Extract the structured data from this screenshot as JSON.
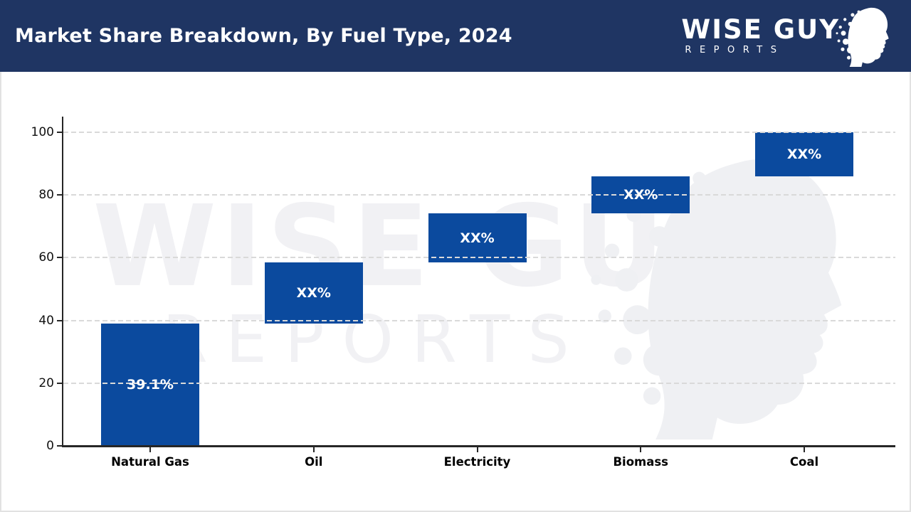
{
  "header": {
    "title": "Market Share Breakdown, By Fuel Type, 2024"
  },
  "brand": {
    "wordmark": "WISE GUY",
    "subtitle": "REPORTS"
  },
  "watermark": {
    "line1": "WISE GUY",
    "line2": "REPORTS"
  },
  "chart_data": {
    "type": "bar",
    "subtype": "waterfall",
    "title": "Market Share Breakdown, By Fuel Type, 2024",
    "categories": [
      "Natural Gas",
      "Oil",
      "Electricity",
      "Biomass",
      "Coal"
    ],
    "series": [
      {
        "name": "Market share (%)",
        "segments": [
          {
            "category": "Natural Gas",
            "start": 0,
            "end": 39.1,
            "label": "39.1%"
          },
          {
            "category": "Oil",
            "start": 39.1,
            "end": 58.5,
            "label": "XX%"
          },
          {
            "category": "Electricity",
            "start": 58.5,
            "end": 74.1,
            "label": "XX%"
          },
          {
            "category": "Biomass",
            "start": 74.1,
            "end": 86.0,
            "label": "XX%"
          },
          {
            "category": "Coal",
            "start": 86.0,
            "end": 100.0,
            "label": "XX%"
          }
        ]
      }
    ],
    "xlabel": "",
    "ylabel": "",
    "ylim": [
      0,
      100
    ],
    "yticks": [
      0,
      20,
      40,
      60,
      80,
      100
    ],
    "grid": "horizontal-dashed",
    "legend": "none",
    "bar_color": "#0b4a9e",
    "bar_label_color": "#ffffff",
    "grid_color": "#d9d9d9",
    "axis_color": "#262626",
    "header_color": "#1f3563"
  }
}
